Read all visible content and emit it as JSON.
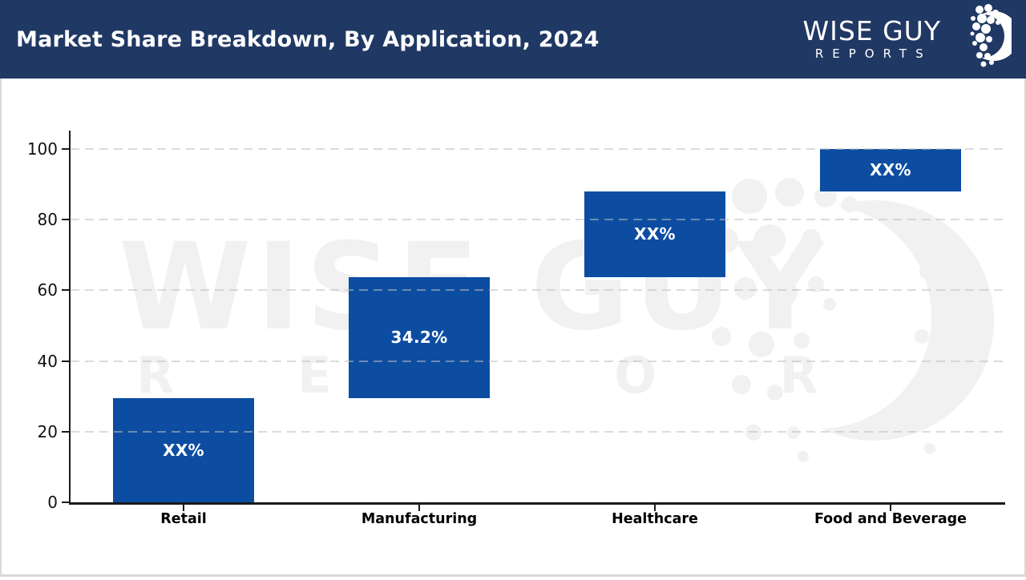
{
  "header": {
    "title": "Market Share Breakdown, By Application, 2024",
    "logo": {
      "line1": "WISE GUY",
      "line2": "REPORTS"
    }
  },
  "watermark": {
    "line1": "WISE GUY",
    "line2": "R E P O R T S"
  },
  "chart_data": {
    "type": "bar",
    "subtype": "floating-segment (waterfall-style market share breakdown)",
    "title": "Market Share Breakdown, By Application, 2024",
    "categories": [
      "Retail",
      "Manufacturing",
      "Healthcare",
      "Food and Beverage"
    ],
    "segments": [
      {
        "category": "Retail",
        "start": 0,
        "end": 29.5,
        "value_label": "XX%"
      },
      {
        "category": "Manufacturing",
        "start": 29.5,
        "end": 63.7,
        "value_label": "34.2%"
      },
      {
        "category": "Healthcare",
        "start": 63.7,
        "end": 88.0,
        "value_label": "XX%"
      },
      {
        "category": "Food and Beverage",
        "start": 88.0,
        "end": 100.0,
        "value_label": "XX%"
      }
    ],
    "yticks": [
      0,
      20,
      40,
      60,
      80,
      100
    ],
    "ylim": [
      0,
      105
    ],
    "xlabel": "",
    "ylabel": "",
    "grid": "horizontal-dashed",
    "legend": "none"
  },
  "colors": {
    "header_bg": "#203864",
    "bar": "#0c4da2",
    "bar_label": "#ffffff",
    "axis": "#1a1a1a",
    "grid": "#dcdcdc",
    "watermark": "#f1f1f1",
    "edge": "#d9d9d9"
  }
}
